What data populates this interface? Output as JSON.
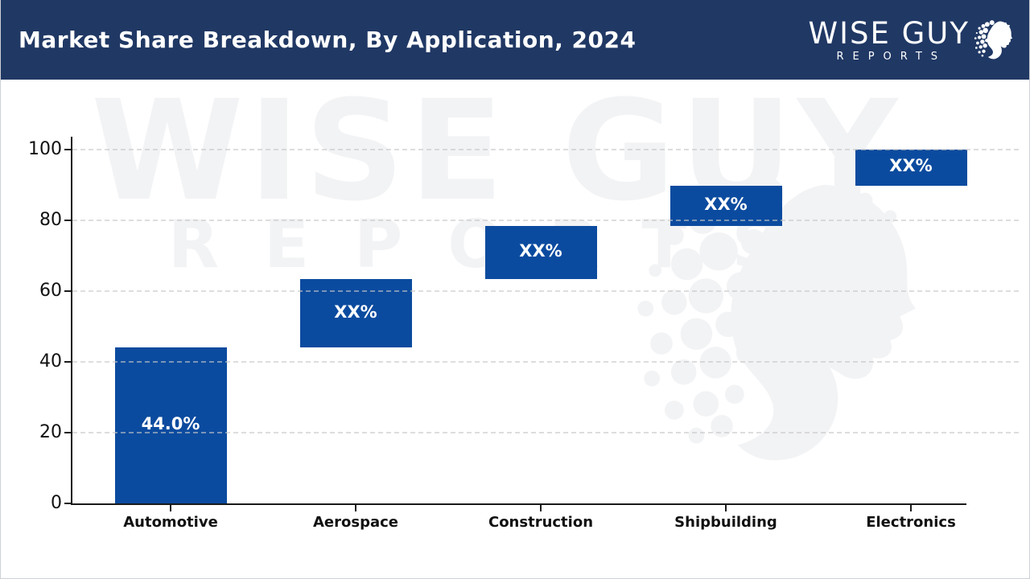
{
  "header": {
    "title": "Market Share Breakdown, By Application, 2024",
    "logo": {
      "line1": "WISE GUY",
      "line2": "REPORTS"
    }
  },
  "watermark": {
    "line1": "WISE GUY",
    "line2": "REPORTS"
  },
  "chart_data": {
    "type": "bar",
    "subtype": "waterfall",
    "title": "Market Share Breakdown, By Application, 2024",
    "categories": [
      "Automotive",
      "Aerospace",
      "Construction",
      "Shipbuilding",
      "Electronics"
    ],
    "segments": [
      {
        "category": "Automotive",
        "start": 0,
        "end": 44.0,
        "label": "44.0%"
      },
      {
        "category": "Aerospace",
        "start": 44.0,
        "end": 63.5,
        "label": "XX%"
      },
      {
        "category": "Construction",
        "start": 63.5,
        "end": 78.3,
        "label": "XX%"
      },
      {
        "category": "Shipbuilding",
        "start": 78.5,
        "end": 89.8,
        "label": "XX%"
      },
      {
        "category": "Electronics",
        "start": 89.8,
        "end": 100.0,
        "label": "XX%"
      }
    ],
    "xlabel": "",
    "ylabel": "",
    "ylim": [
      0,
      100
    ],
    "yticks": [
      0,
      20,
      40,
      60,
      80,
      100
    ],
    "grid": "horizontal-dashed",
    "legend": "none",
    "bar_color": "#0b4b9f",
    "value_label_color": "#ffffff"
  },
  "colors": {
    "header_bg": "#203864",
    "bar": "#0b4b9f",
    "axis": "#1a1a1a",
    "grid": "#c6c6c6",
    "watermark": "#f2f3f5"
  }
}
